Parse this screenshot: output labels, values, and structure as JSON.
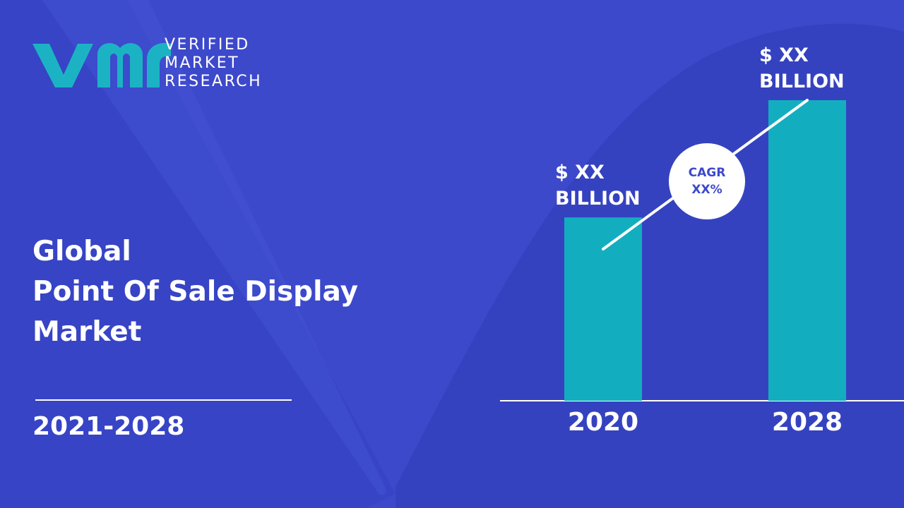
{
  "brand": {
    "logo_mark": "vmr",
    "logo_lines": [
      "VERIFIED",
      "MARKET",
      "RESEARCH"
    ],
    "logo_color": "#1bb3c4"
  },
  "title_lines": [
    "Global",
    "Point Of Sale Display",
    "Market"
  ],
  "period": "2021-2028",
  "colors": {
    "background": "#3d49cb",
    "bar": "#12aebf",
    "text": "#ffffff"
  },
  "chart_data": {
    "type": "bar",
    "categories": [
      "2020",
      "2028"
    ],
    "values": [
      61,
      100
    ],
    "value_labels": [
      [
        "$ XX",
        "BILLION"
      ],
      [
        "$ XX",
        "BILLION"
      ]
    ],
    "ylim": [
      0,
      100
    ],
    "grid": false,
    "annotation": {
      "lines": [
        "CAGR",
        "XX%"
      ]
    },
    "trend_line": true
  }
}
